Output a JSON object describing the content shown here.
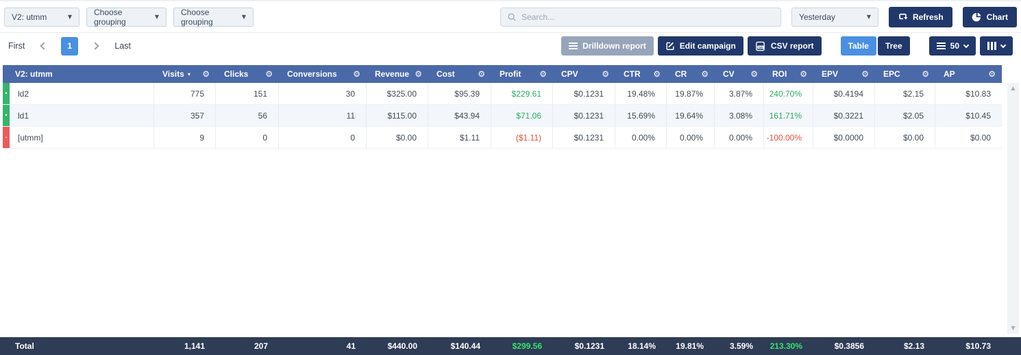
{
  "toolbar": {
    "variable_select": {
      "value": "V2: utmm"
    },
    "grouping_selects": [
      "Choose grouping",
      "Choose grouping"
    ],
    "search": {
      "placeholder": "Search..."
    },
    "date_select": {
      "value": "Yesterday"
    },
    "refresh_button": "Refresh",
    "chart_button": "Chart"
  },
  "pagination": {
    "first": "First",
    "current_page": "1",
    "last": "Last"
  },
  "actionbar": {
    "drilldown_button": "Drilldown report",
    "edit_campaign_button": "Edit campaign",
    "csv_button": "CSV report",
    "table_toggle": "Table",
    "tree_toggle": "Tree",
    "page_size": "50"
  },
  "table": {
    "columns": [
      {
        "label": "V2: utmm",
        "gear": false,
        "sorted": false
      },
      {
        "label": "Visits",
        "gear": true,
        "sorted": true
      },
      {
        "label": "Clicks",
        "gear": true
      },
      {
        "label": "Conversions",
        "gear": true
      },
      {
        "label": "Revenue",
        "gear": true
      },
      {
        "label": "Cost",
        "gear": true
      },
      {
        "label": "Profit",
        "gear": true
      },
      {
        "label": "CPV",
        "gear": true
      },
      {
        "label": "CTR",
        "gear": true
      },
      {
        "label": "CR",
        "gear": true
      },
      {
        "label": "CV",
        "gear": true
      },
      {
        "label": "ROI",
        "gear": true
      },
      {
        "label": "EPV",
        "gear": true
      },
      {
        "label": "EPC",
        "gear": true
      },
      {
        "label": "AP",
        "gear": true
      }
    ],
    "rows": [
      {
        "name": "ld2",
        "status": "positive",
        "indicator": "•",
        "cells": [
          "775",
          "151",
          "30",
          "$325.00",
          "$95.39",
          "$229.61",
          "$0.1231",
          "19.48%",
          "19.87%",
          "3.87%",
          "240.70%",
          "$0.4194",
          "$2.15",
          "$10.83"
        ],
        "green_cells": [
          5,
          10
        ],
        "red_cells": []
      },
      {
        "name": "ld1",
        "status": "positive",
        "indicator": "•",
        "cells": [
          "357",
          "56",
          "11",
          "$115.00",
          "$43.94",
          "$71.06",
          "$0.1231",
          "15.69%",
          "19.64%",
          "3.08%",
          "161.71%",
          "$0.3221",
          "$2.05",
          "$10.45"
        ],
        "green_cells": [
          5,
          10
        ],
        "red_cells": []
      },
      {
        "name": "[utmm]",
        "status": "negative",
        "indicator": "-",
        "cells": [
          "9",
          "0",
          "0",
          "$0.00",
          "$1.11",
          "($1.11)",
          "$0.1231",
          "0.00%",
          "0.00%",
          "0.00%",
          "-100.00%",
          "$0.0000",
          "$0.00",
          "$0.00"
        ],
        "green_cells": [],
        "red_cells": [
          5,
          10
        ]
      }
    ],
    "total": {
      "label": "Total",
      "cells": [
        "1,141",
        "207",
        "41",
        "$440.00",
        "$140.44",
        "$299.56",
        "$0.1231",
        "18.14%",
        "19.81%",
        "3.59%",
        "213.30%",
        "$0.3856",
        "$2.13",
        "$10.73"
      ],
      "green_cells": [
        5,
        10
      ]
    }
  },
  "colors": {
    "header_bg": "#4a69a8",
    "total_bg": "#2e3c55",
    "accent_blue": "#4a90e2",
    "navy": "#21386b",
    "positive": "#27ae60",
    "negative": "#e74c3c",
    "positive_bright": "#35e36b",
    "bar_green": "#35b46c",
    "bar_red": "#ee5a5a"
  }
}
